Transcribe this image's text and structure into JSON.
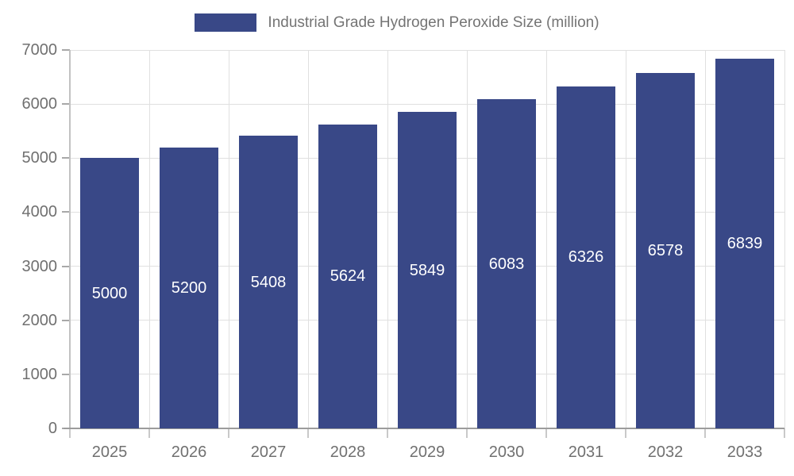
{
  "legend": {
    "label": "Industrial Grade Hydrogen Peroxide Size (million)"
  },
  "chart_data": {
    "type": "bar",
    "title": "Industrial Grade Hydrogen Peroxide Size (million)",
    "categories": [
      "2025",
      "2026",
      "2027",
      "2028",
      "2029",
      "2030",
      "2031",
      "2032",
      "2033"
    ],
    "values": [
      5000,
      5200,
      5408,
      5624,
      5849,
      6083,
      6326,
      6578,
      6839
    ],
    "xlabel": "",
    "ylabel": "",
    "ylim": [
      0,
      7000
    ],
    "ytick_step": 1000,
    "grid": true,
    "legend_position": "top-center",
    "bar_color": "#394887",
    "value_label_color": "#ffffff",
    "axis_label_color": "#707070",
    "grid_color": "#e0e0e0",
    "axis_line_color": "#9c9c9c"
  }
}
